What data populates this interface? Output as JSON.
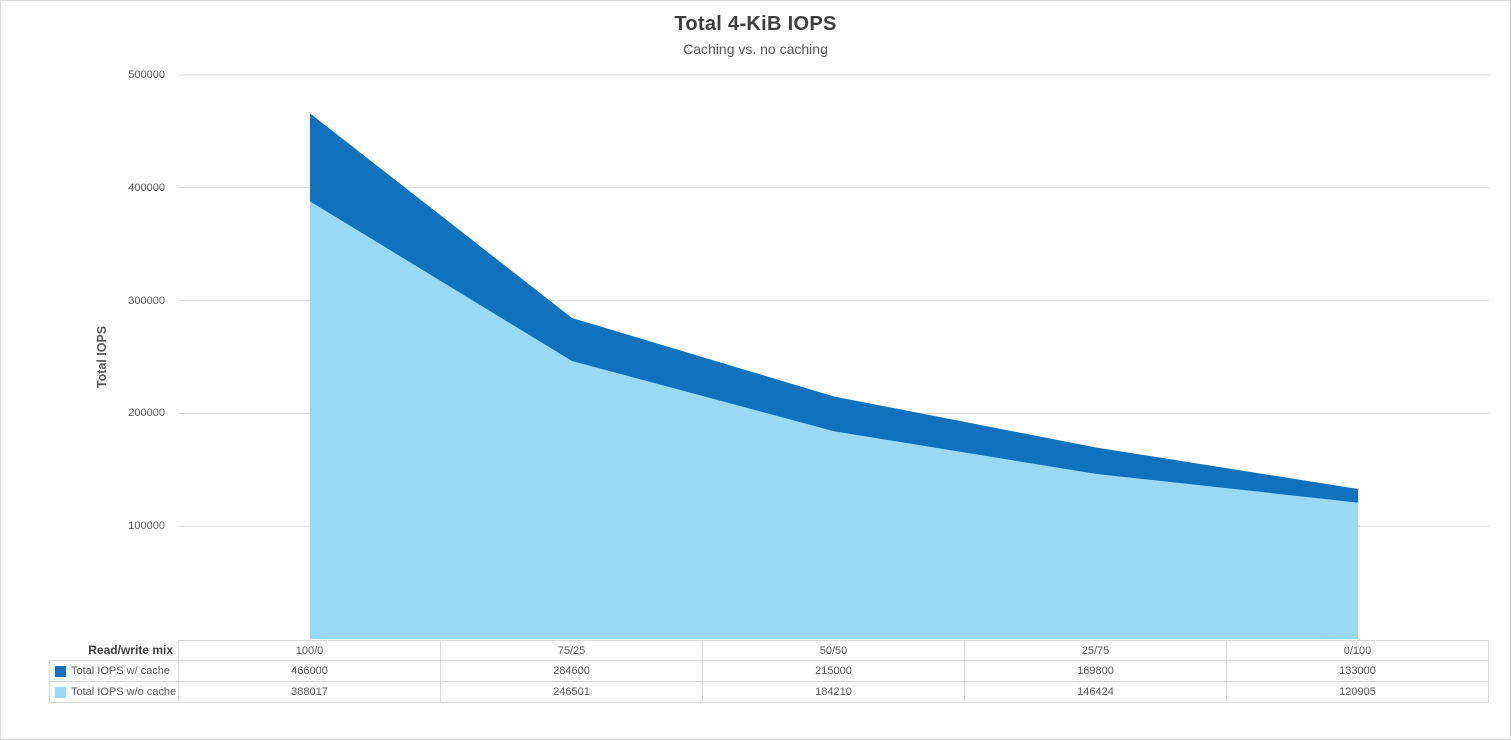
{
  "chart_data": {
    "type": "area",
    "title": "Total 4-KiB IOPS",
    "subtitle": "Caching vs. no caching",
    "xlabel": "Read/write mix",
    "ylabel": "Total IOPS",
    "categories": [
      "100/0",
      "75/25",
      "50/50",
      "25/75",
      "0/100"
    ],
    "series": [
      {
        "name": "Total IOPS w/ cache",
        "color": "#1071bd",
        "values": [
          466000,
          284600,
          215000,
          169800,
          133000
        ]
      },
      {
        "name": "Total IOPS w/o cache",
        "color": "#97d9f6",
        "values": [
          388017,
          246501,
          184210,
          146424,
          120905
        ]
      }
    ],
    "ylim": [
      0,
      500000
    ],
    "yticks": [
      500000,
      400000,
      300000,
      200000,
      100000
    ],
    "grid": true,
    "legend_position": "data-table-left",
    "overlap_mode": "overlapping-not-stacked"
  },
  "palette": {
    "gridline": "#d9d9d9",
    "table_border": "#d9d9d9",
    "axis_text": "#595959",
    "title_text": "#3f3f3f",
    "background": "#ffffff"
  }
}
